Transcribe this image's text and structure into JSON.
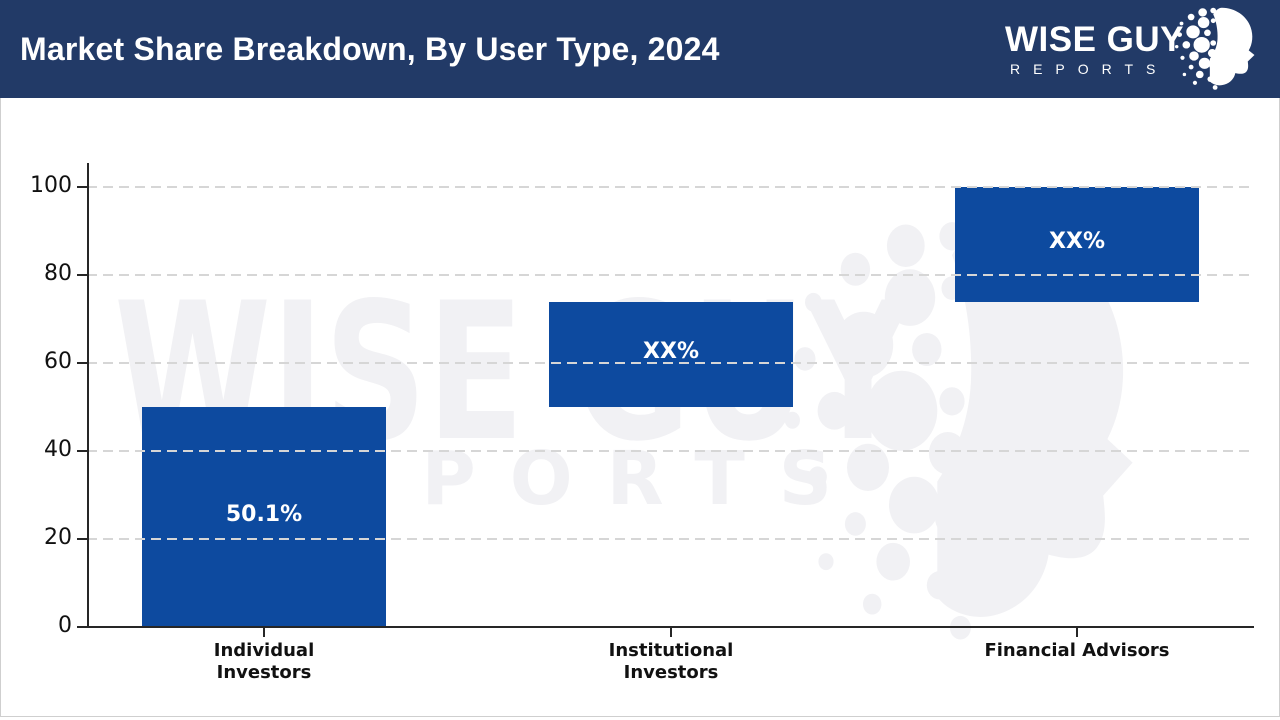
{
  "header": {
    "title": "Market Share Breakdown, By User Type, 2024",
    "logo": {
      "name_line": "WISE GUY",
      "sub_line": "REPORTS"
    }
  },
  "watermark": {
    "name_line": "WISE GUY",
    "sub_line": "REPORTS"
  },
  "colors": {
    "header_bg": "#223a67",
    "bar": "#0d4a9f",
    "bar_label": "#ffffff",
    "grid": "#d6d6d6",
    "axis": "#262626",
    "tick_label": "#111111",
    "watermark": "#f1f1f4"
  },
  "chart_data": {
    "type": "bar",
    "subtype": "waterfall",
    "title": "Market Share Breakdown, By User Type, 2024",
    "categories": [
      "Individual\nInvestors",
      "Institutional\nInvestors",
      "Financial Advisors"
    ],
    "segments": [
      {
        "category": "Individual Investors",
        "start": 0,
        "end": 50.1,
        "value_label": "50.1%"
      },
      {
        "category": "Institutional Investors",
        "start": 50.1,
        "end": 73.9,
        "value_label": "XX%"
      },
      {
        "category": "Financial Advisors",
        "start": 73.9,
        "end": 100,
        "value_label": "XX%"
      }
    ],
    "y_ticks": [
      0,
      20,
      40,
      60,
      80,
      100
    ],
    "ylim": [
      0,
      105.5
    ],
    "xlabel": "",
    "ylabel": "",
    "grid": "horizontal-dashed",
    "legend": "none"
  }
}
